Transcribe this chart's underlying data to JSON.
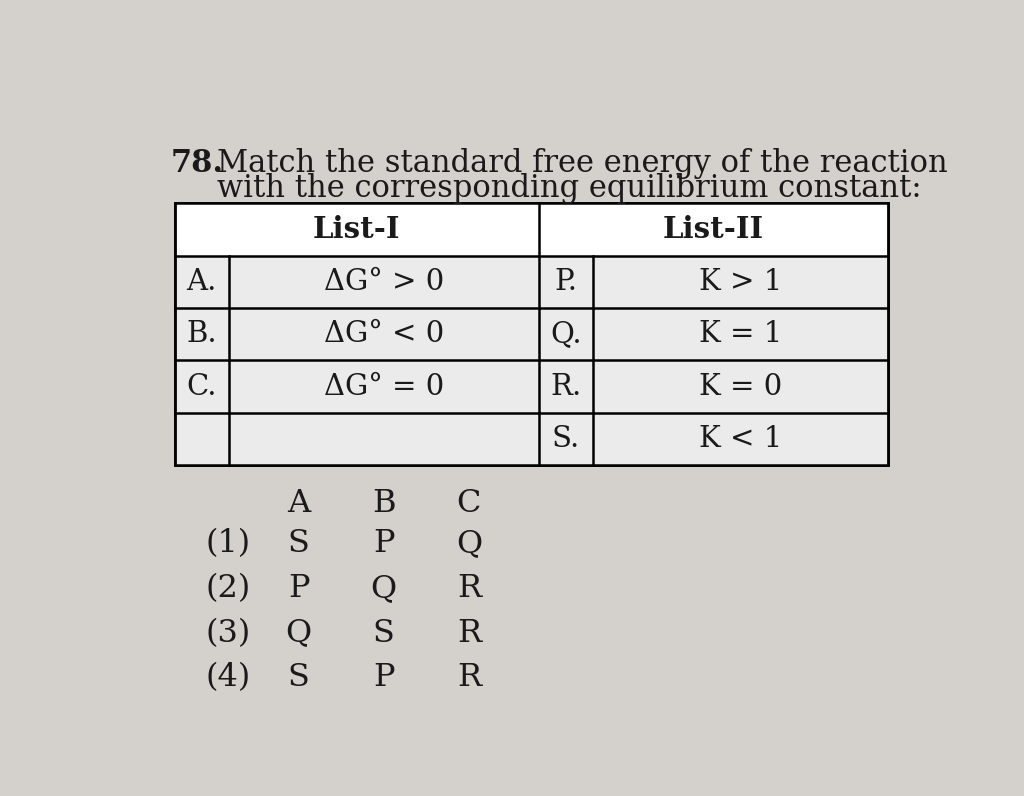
{
  "question_number": "78.",
  "question_text_line1": "Match the standard free energy of the reaction",
  "question_text_line2": "with the corresponding equilibrium constant:",
  "bg_color": "#d4d0cb",
  "table_bg": "#ffffff",
  "cell_bg": "#e8e6e2",
  "list1_labels": [
    "A.",
    "B.",
    "C."
  ],
  "list1_values": [
    "ΔG° > 0",
    "ΔG° < 0",
    "ΔG° = 0"
  ],
  "list2_labels": [
    "P.",
    "Q.",
    "R.",
    "S."
  ],
  "list2_values": [
    "K > 1",
    "K = 1",
    "K = 0",
    "K < 1"
  ],
  "answers": [
    [
      "(1)",
      "S",
      "P",
      "Q"
    ],
    [
      "(2)",
      "P",
      "Q",
      "R"
    ],
    [
      "(3)",
      "Q",
      "S",
      "R"
    ],
    [
      "(4)",
      "S",
      "P",
      "R"
    ]
  ],
  "font_color": "#1a1a1a",
  "font_size_question": 22,
  "font_size_table": 21,
  "font_size_answers": 23
}
